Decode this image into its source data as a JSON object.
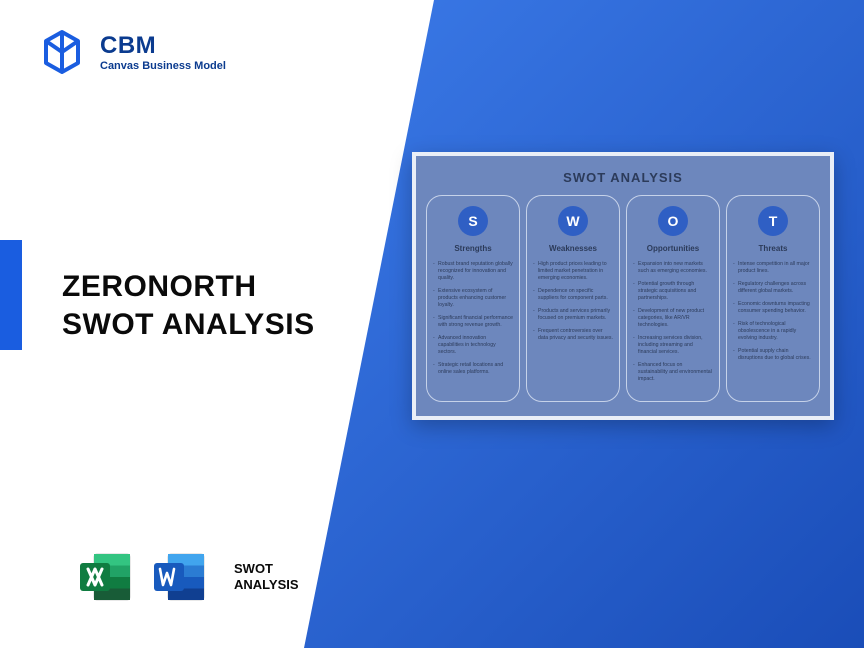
{
  "logo": {
    "title": "CBM",
    "subtitle": "Canvas Business Model",
    "mark_color": "#1a5de0"
  },
  "accent_color": "#1a5de0",
  "background_gradient": {
    "from": "#3b7ae8",
    "to": "#1a4db8"
  },
  "main_title_line1": "ZERONORTH",
  "main_title_line2": "SWOT ANALYSIS",
  "icons": {
    "excel_color_dark": "#107c41",
    "excel_color_light": "#21a366",
    "word_color_dark": "#185abd",
    "word_color_light": "#2b7cd3",
    "label_line1": "SWOT",
    "label_line2": "ANALYSIS"
  },
  "diagram": {
    "title": "SWOT ANALYSIS",
    "card_bg": "#6d87bd",
    "card_border": "#e9eef7",
    "col_border": "#c6d2e9",
    "circle_bg": "#2f5fc4",
    "heading_color": "#2c3b5a",
    "columns": [
      {
        "letter": "S",
        "heading": "Strengths",
        "items": [
          "Robust brand reputation globally recognized for innovation and quality.",
          "Extensive ecosystem of products enhancing customer loyalty.",
          "Significant financial performance with strong revenue growth.",
          "Advanced innovation capabilities in technology sectors.",
          "Strategic retail locations and online sales platforms."
        ]
      },
      {
        "letter": "W",
        "heading": "Weaknesses",
        "items": [
          "High product prices leading to limited market penetration in emerging economies.",
          "Dependence on specific suppliers for component parts.",
          "Products and services primarily focused on premium markets.",
          "Frequent controversies over data privacy and security issues."
        ]
      },
      {
        "letter": "O",
        "heading": "Opportunities",
        "items": [
          "Expansion into new markets such as emerging economies.",
          "Potential growth through strategic acquisitions and partnerships.",
          "Development of new product categories, like AR/VR technologies.",
          "Increasing services division, including streaming and financial services.",
          "Enhanced focus on sustainability and environmental impact."
        ]
      },
      {
        "letter": "T",
        "heading": "Threats",
        "items": [
          "Intense competition in all major product lines.",
          "Regulatory challenges across different global markets.",
          "Economic downturns impacting consumer spending behavior.",
          "Risk of technological obsolescence in a rapidly evolving industry.",
          "Potential supply chain disruptions due to global crises."
        ]
      }
    ]
  }
}
